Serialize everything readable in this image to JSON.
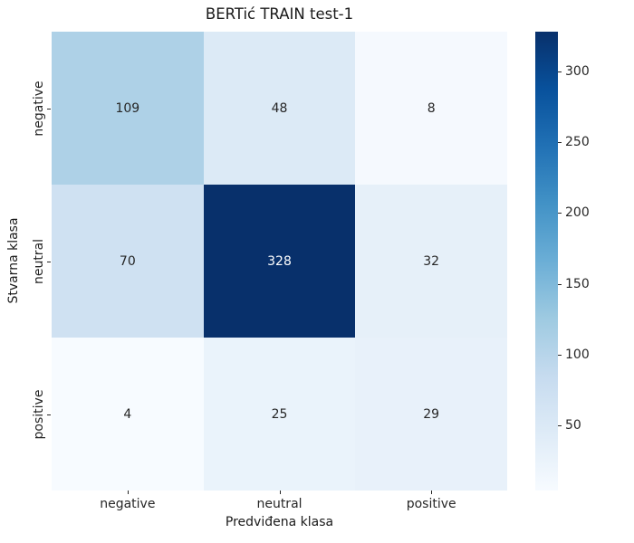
{
  "figure": {
    "background": "#ffffff"
  },
  "chart_data": {
    "type": "heatmap",
    "title": "BERTić TRAIN test-1",
    "xlabel": "Predviđena klasa",
    "ylabel": "Stvarna klasa",
    "x_categories": [
      "negative",
      "neutral",
      "positive"
    ],
    "y_categories": [
      "negative",
      "neutral",
      "positive"
    ],
    "values": [
      [
        109,
        48,
        8
      ],
      [
        70,
        328,
        32
      ],
      [
        4,
        25,
        29
      ]
    ],
    "vmin": 4,
    "vmax": 328,
    "colormap": "Blues",
    "colormap_stops": [
      "#f7fbff",
      "#deebf7",
      "#c6dbef",
      "#9ecae1",
      "#6baed6",
      "#4292c6",
      "#2171b5",
      "#08519c",
      "#08306b"
    ],
    "colorbar_ticks": [
      50,
      100,
      150,
      200,
      250,
      300
    ],
    "colorbar_position": "right",
    "annotation_color_dark": "#262626",
    "annotation_color_light": "#ffffff",
    "grid": false
  }
}
